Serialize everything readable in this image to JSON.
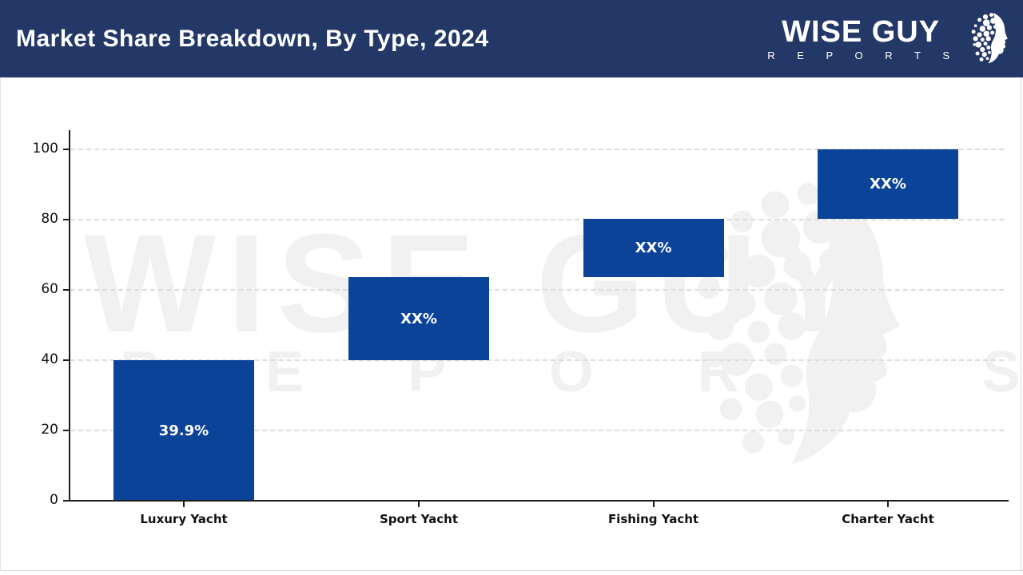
{
  "header": {
    "title": "Market Share Breakdown, By Type, 2024",
    "logo": {
      "line1": "WISE GUY",
      "line2": "R E P O R T S"
    }
  },
  "watermark": {
    "line1": "WISE GUY",
    "line2": "R E P O R T S"
  },
  "chart_data": {
    "type": "bar",
    "subtype": "waterfall",
    "title": "Market Share Breakdown, By Type, 2024",
    "categories": [
      "Luxury Yacht",
      "Sport Yacht",
      "Fishing Yacht",
      "Charter Yacht"
    ],
    "series": [
      {
        "category": "Luxury Yacht",
        "start": 0,
        "end": 39.9,
        "label": "39.9%"
      },
      {
        "category": "Sport Yacht",
        "start": 39.9,
        "end": 63.6,
        "label": "XX%"
      },
      {
        "category": "Fishing Yacht",
        "start": 63.6,
        "end": 80.3,
        "label": "XX%"
      },
      {
        "category": "Charter Yacht",
        "start": 80.3,
        "end": 100,
        "label": "XX%"
      }
    ],
    "yticks": [
      0,
      20,
      40,
      60,
      80,
      100
    ],
    "ylim": [
      0,
      105
    ],
    "xlabel": "",
    "ylabel": "",
    "grid": "horizontal-dashed",
    "legend": "none",
    "bar_color": "#0b4399",
    "bar_label_color": "#ffffff"
  },
  "colors": {
    "header_bg": "#233866",
    "bar": "#0b4399",
    "axis": "#1c1c1c",
    "gridline": "#dcdcdc",
    "watermark": "#f1f1f1",
    "frame_line": "#d9d9d9"
  }
}
